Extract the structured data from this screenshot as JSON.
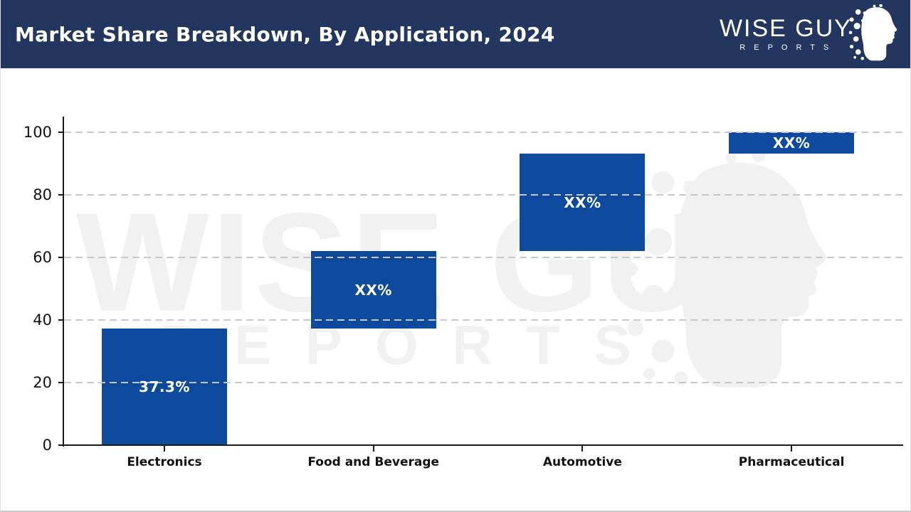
{
  "header": {
    "title": "Market Share Breakdown, By Application, 2024",
    "logo": {
      "line1": "WISE GUY",
      "line2": "R E P O R T S"
    }
  },
  "watermark": {
    "line1": "WISE GUY",
    "line2": "R E P O R T S"
  },
  "colors": {
    "header_bg": "#22365f",
    "bar_blue": "#0d4a9e",
    "gridline": "#c9c9c9",
    "axis": "#1a1a1a",
    "watermark_gray": "#f1f1f1"
  },
  "chart_data": {
    "type": "bar",
    "subtype": "waterfall",
    "title": "Market Share Breakdown, By Application, 2024",
    "categories": [
      "Electronics",
      "Food and Beverage",
      "Automotive",
      "Pharmaceutical"
    ],
    "segments": [
      {
        "category": "Electronics",
        "start": 0,
        "end": 37.3,
        "label": "37.3%"
      },
      {
        "category": "Food and Beverage",
        "start": 37.3,
        "end": 62.0,
        "label": "XX%"
      },
      {
        "category": "Automotive",
        "start": 62.0,
        "end": 93.2,
        "label": "XX%"
      },
      {
        "category": "Pharmaceutical",
        "start": 93.2,
        "end": 100,
        "label": "XX%"
      }
    ],
    "yticks": [
      0,
      20,
      40,
      60,
      80,
      100
    ],
    "ylim": [
      0,
      105
    ],
    "xlabel": "",
    "ylabel": "",
    "grid": "horizontal-dashed",
    "legend": "none",
    "bar_color": "#0d4a9e"
  }
}
